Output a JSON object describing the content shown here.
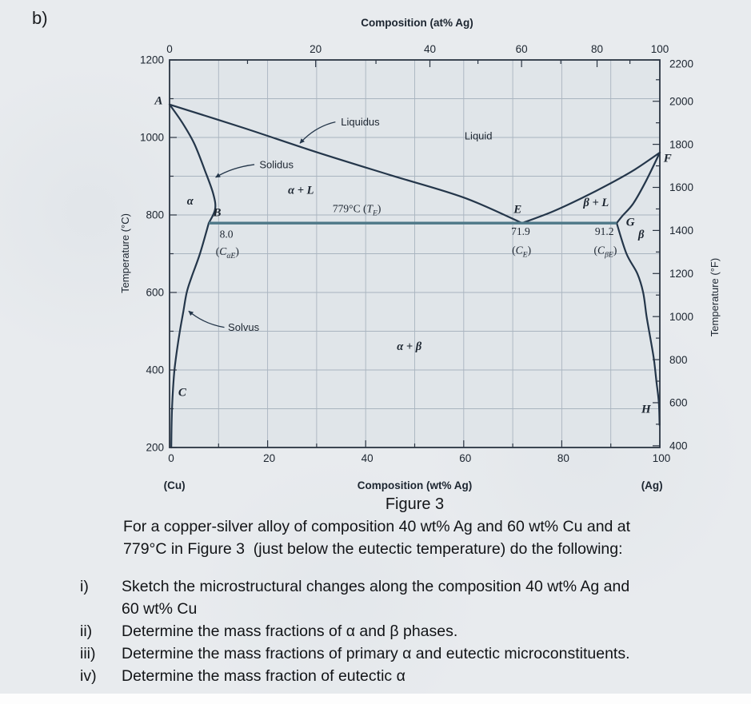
{
  "page": {
    "corner_label": "b)"
  },
  "figure": {
    "caption": "Figure 3"
  },
  "question": {
    "intro_lines": [
      "For a copper-silver alloy of composition 40 wt% Ag and 60 wt% Cu and at",
      "779°C in Figure 3  (just below the eutectic temperature) do the following:"
    ],
    "items": [
      {
        "num": "i)",
        "lines": [
          "Sketch the microstructural changes along the composition 40 wt% Ag and",
          "60 wt% Cu"
        ]
      },
      {
        "num": "ii)",
        "lines": [
          "Determine the mass fractions of α and β phases."
        ]
      },
      {
        "num": "iii)",
        "lines": [
          "Determine the mass fractions of primary α and eutectic microconstituents."
        ]
      },
      {
        "num": "iv)",
        "lines": [
          "Determine the mass fraction of eutectic α"
        ]
      }
    ]
  },
  "chart_data": {
    "type": "line",
    "kind": "binary-eutectic-phase-diagram",
    "system": "Cu-Ag",
    "axes": {
      "top": {
        "label": "Composition (at% Ag)",
        "tick_labels": [
          "0",
          "20",
          "40",
          "60",
          "80",
          "100"
        ],
        "tick_positions_wt": [
          0,
          29.8,
          53.1,
          71.8,
          87.2,
          100
        ],
        "minor_tick_positions_wt": [
          15.9,
          42.1,
          62.9,
          79.8,
          93.9
        ]
      },
      "bottom": {
        "label": "Composition (wt% Ag)",
        "left_end_label": "(Cu)",
        "right_end_label": "(Ag)",
        "ticks": [
          0,
          20,
          40,
          60,
          80,
          100
        ],
        "minor_ticks": [
          10,
          30,
          50,
          70,
          90
        ],
        "range": [
          0,
          100
        ]
      },
      "left": {
        "label": "Temperature (°C)",
        "ticks": [
          200,
          400,
          600,
          800,
          1000,
          1200
        ],
        "minor_ticks": [
          300,
          500,
          700,
          900,
          1100
        ],
        "range": [
          200,
          1200
        ]
      },
      "right": {
        "label": "Temperature (°F)",
        "ticks": [
          400,
          600,
          800,
          1000,
          1200,
          1400,
          1600,
          1800,
          2000,
          2200
        ],
        "minor_ticks": [
          500,
          700,
          900,
          1100,
          1300,
          1500,
          1700,
          1900,
          2100
        ]
      }
    },
    "grid": {
      "vertical_wt": [
        10,
        20,
        30,
        40,
        50,
        60,
        70,
        80,
        90
      ],
      "horizontal_c": [
        300,
        400,
        500,
        600,
        700,
        800,
        900,
        1000,
        1100
      ]
    },
    "eutectic": {
      "temp_c": 779,
      "composition_span_wt": [
        8.0,
        91.2
      ]
    },
    "curves": [
      {
        "name": "cu-liquidus",
        "points_wt_c": [
          [
            0,
            1085
          ],
          [
            15,
            1025
          ],
          [
            30,
            962
          ],
          [
            45,
            903
          ],
          [
            60,
            845
          ],
          [
            71.9,
            779
          ]
        ]
      },
      {
        "name": "cu-solidus",
        "points_wt_c": [
          [
            0,
            1085
          ],
          [
            2.5,
            1040
          ],
          [
            5,
            985
          ],
          [
            7.2,
            915
          ],
          [
            8.9,
            855
          ],
          [
            9.3,
            815
          ],
          [
            8.0,
            779
          ]
        ]
      },
      {
        "name": "cu-solvus",
        "points_wt_c": [
          [
            8.0,
            779
          ],
          [
            6.2,
            700
          ],
          [
            4.5,
            640
          ],
          [
            3.5,
            600
          ],
          [
            2.8,
            550
          ],
          [
            2.1,
            500
          ],
          [
            1.5,
            450
          ],
          [
            1.0,
            400
          ],
          [
            0.7,
            350
          ],
          [
            0.5,
            300
          ],
          [
            0.4,
            250
          ],
          [
            0.35,
            200
          ]
        ]
      },
      {
        "name": "ag-liquidus",
        "points_wt_c": [
          [
            71.9,
            779
          ],
          [
            78,
            808
          ],
          [
            84,
            843
          ],
          [
            90,
            882
          ],
          [
            95,
            918
          ],
          [
            100,
            961
          ]
        ]
      },
      {
        "name": "ag-solidus",
        "points_wt_c": [
          [
            100,
            961
          ],
          [
            97.2,
            888
          ],
          [
            94.6,
            830
          ],
          [
            92.4,
            798
          ],
          [
            91.2,
            779
          ]
        ]
      },
      {
        "name": "ag-solvus",
        "points_wt_c": [
          [
            91.2,
            779
          ],
          [
            93.2,
            700
          ],
          [
            95.4,
            649
          ],
          [
            96.6,
            600
          ],
          [
            97.3,
            538
          ],
          [
            98.1,
            480
          ],
          [
            98.8,
            427
          ],
          [
            99.3,
            371
          ],
          [
            99.8,
            316
          ],
          [
            99.95,
            258
          ]
        ]
      }
    ],
    "point_labels": [
      {
        "text": "A",
        "wt": -1.4,
        "c": 1086,
        "anchor": "end"
      },
      {
        "text": "B",
        "wt": 9.7,
        "c": 797,
        "anchor": "middle"
      },
      {
        "text": "C",
        "wt": 2.6,
        "c": 333,
        "anchor": "middle"
      },
      {
        "text": "E",
        "wt": 71.0,
        "c": 805,
        "anchor": "middle"
      },
      {
        "text": "F",
        "wt": 101.6,
        "c": 937,
        "anchor": "middle"
      },
      {
        "text": "G",
        "wt": 94.0,
        "c": 772,
        "anchor": "middle"
      },
      {
        "text": "H",
        "wt": 97.2,
        "c": 290,
        "anchor": "middle"
      }
    ],
    "value_labels": [
      {
        "parts": [
          {
            "t": "779°C ("
          },
          {
            "t": "T",
            "i": true
          },
          {
            "t": "E",
            "sub": true,
            "i": true
          },
          {
            "t": ")"
          }
        ],
        "wt": 38.2,
        "c": 807
      },
      {
        "parts": [
          {
            "t": "8.0"
          }
        ],
        "wt": 11.6,
        "c": 741
      },
      {
        "parts": [
          {
            "t": "("
          },
          {
            "t": "C",
            "i": true
          },
          {
            "t": "αE",
            "sub": true,
            "i": true
          },
          {
            "t": ")"
          }
        ],
        "wt": 11.8,
        "c": 697
      },
      {
        "parts": [
          {
            "t": "71.9"
          }
        ],
        "wt": 71.6,
        "c": 748
      },
      {
        "parts": [
          {
            "t": "("
          },
          {
            "t": "C",
            "i": true
          },
          {
            "t": "E",
            "sub": true,
            "i": true
          },
          {
            "t": ")"
          }
        ],
        "wt": 71.8,
        "c": 700
      },
      {
        "parts": [
          {
            "t": "91.2"
          }
        ],
        "wt": 88.7,
        "c": 748
      },
      {
        "parts": [
          {
            "t": "("
          },
          {
            "t": "C",
            "i": true
          },
          {
            "t": "βE",
            "sub": true,
            "i": true
          },
          {
            "t": ")"
          }
        ],
        "wt": 88.9,
        "c": 700
      }
    ],
    "region_labels": [
      {
        "text": "α",
        "wt": 4.2,
        "c": 827,
        "style": "serif-italic"
      },
      {
        "text": "α + L",
        "wt": 26.8,
        "c": 855,
        "style": "serif-italic"
      },
      {
        "text": "Liquid",
        "wt": 63.0,
        "c": 995,
        "style": "sans"
      },
      {
        "text": "β + L",
        "wt": 87.0,
        "c": 823,
        "style": "serif-italic"
      },
      {
        "text": "β",
        "wt": 96.2,
        "c": 740,
        "style": "serif-italic"
      },
      {
        "text": "α + β",
        "wt": 48.9,
        "c": 452,
        "style": "serif-italic"
      }
    ],
    "callouts": [
      {
        "text": "Liquidus",
        "text_wt": 38.9,
        "text_c": 1040,
        "tip_wt": 26.6,
        "tip_c": 985
      },
      {
        "text": "Solidus",
        "text_wt": 21.8,
        "text_c": 930,
        "tip_wt": 9.4,
        "tip_c": 897
      },
      {
        "text": "Solvus",
        "text_wt": 15.1,
        "text_c": 510,
        "tip_wt": 3.9,
        "tip_c": 552
      }
    ],
    "colors": {
      "curve": "#24364a",
      "eutectic_line": "#4e7888",
      "grid": "#a9b4bf",
      "plot_bg": "#e0e5e9",
      "border": "#2a3442",
      "text": "#1c2530"
    }
  }
}
